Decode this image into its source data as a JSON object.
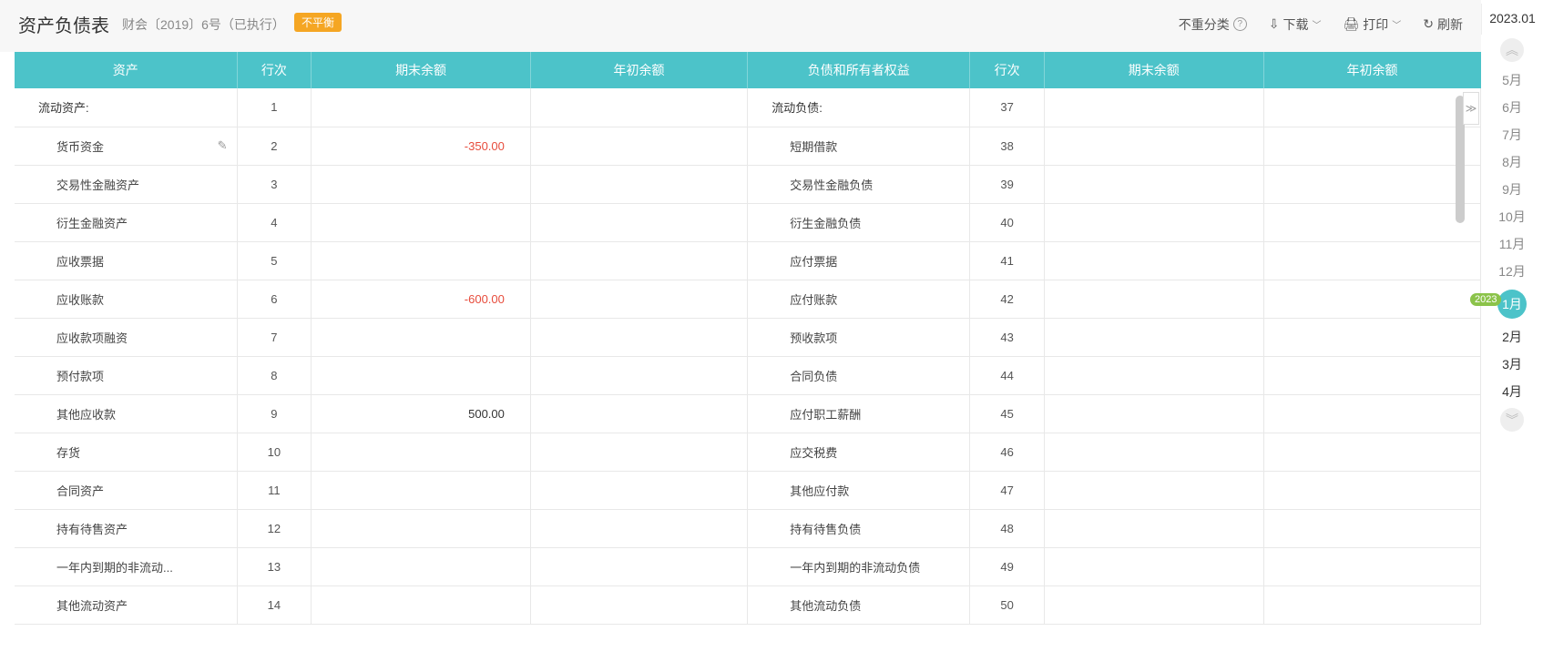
{
  "header": {
    "title": "资产负债表",
    "subtitle": "财会〔2019〕6号（已执行）",
    "badge": "不平衡",
    "actions": {
      "reclassify": "不重分类",
      "download": "下载",
      "print": "打印",
      "refresh": "刷新"
    }
  },
  "columns": {
    "assets": "资产",
    "line1": "行次",
    "end1": "期末余额",
    "begin1": "年初余额",
    "liab": "负债和所有者权益",
    "line2": "行次",
    "end2": "期末余额",
    "begin2": "年初余额"
  },
  "rows": [
    {
      "a": "流动资产:",
      "al": "1",
      "ae": "",
      "ab": "",
      "ahdr": true,
      "l": "流动负债:",
      "ll": "37",
      "le": "",
      "lb": "",
      "lhdr": true
    },
    {
      "a": "货币资金",
      "al": "2",
      "ae": "-350.00",
      "aeneg": true,
      "ab": "",
      "edit": true,
      "l": "短期借款",
      "ll": "38",
      "le": "",
      "lb": ""
    },
    {
      "a": "交易性金融资产",
      "al": "3",
      "ae": "",
      "ab": "",
      "l": "交易性金融负债",
      "ll": "39",
      "le": "",
      "lb": ""
    },
    {
      "a": "衍生金融资产",
      "al": "4",
      "ae": "",
      "ab": "",
      "l": "衍生金融负债",
      "ll": "40",
      "le": "",
      "lb": ""
    },
    {
      "a": "应收票据",
      "al": "5",
      "ae": "",
      "ab": "",
      "l": "应付票据",
      "ll": "41",
      "le": "",
      "lb": ""
    },
    {
      "a": "应收账款",
      "al": "6",
      "ae": "-600.00",
      "aeneg": true,
      "ab": "",
      "l": "应付账款",
      "ll": "42",
      "le": "",
      "lb": ""
    },
    {
      "a": "应收款项融资",
      "al": "7",
      "ae": "",
      "ab": "",
      "l": "预收款项",
      "ll": "43",
      "le": "",
      "lb": ""
    },
    {
      "a": "预付款项",
      "al": "8",
      "ae": "",
      "ab": "",
      "l": "合同负债",
      "ll": "44",
      "le": "",
      "lb": ""
    },
    {
      "a": "其他应收款",
      "al": "9",
      "ae": "500.00",
      "ab": "",
      "l": "应付职工薪酬",
      "ll": "45",
      "le": "",
      "lb": ""
    },
    {
      "a": "存货",
      "al": "10",
      "ae": "",
      "ab": "",
      "l": "应交税费",
      "ll": "46",
      "le": "",
      "lb": ""
    },
    {
      "a": "合同资产",
      "al": "11",
      "ae": "",
      "ab": "",
      "l": "其他应付款",
      "ll": "47",
      "le": "",
      "lb": ""
    },
    {
      "a": "持有待售资产",
      "al": "12",
      "ae": "",
      "ab": "",
      "l": "持有待售负债",
      "ll": "48",
      "le": "",
      "lb": ""
    },
    {
      "a": "一年内到期的非流动...",
      "al": "13",
      "ae": "",
      "ab": "",
      "l": "一年内到期的非流动负债",
      "ll": "49",
      "le": "",
      "lb": ""
    },
    {
      "a": "其他流动资产",
      "al": "14",
      "ae": "",
      "ab": "",
      "l": "其他流动负债",
      "ll": "50",
      "le": "",
      "lb": ""
    }
  ],
  "sidebar": {
    "period": "2023.01",
    "year_badge": "2023",
    "months_above": [
      "5月",
      "6月",
      "7月",
      "8月",
      "9月",
      "10月",
      "11月",
      "12月"
    ],
    "active": "1月",
    "months_below": [
      "2月",
      "3月",
      "4月"
    ]
  }
}
